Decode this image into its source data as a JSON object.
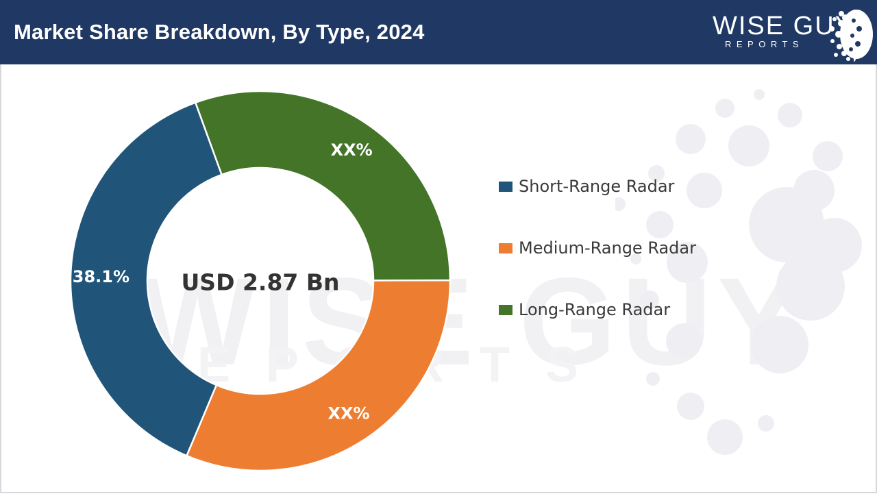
{
  "header": {
    "title": "Market Share Breakdown, By Type, 2024",
    "bg_color": "#203864",
    "logo": {
      "line1": "WISE GUY",
      "line2": "REPORTS"
    }
  },
  "watermark": {
    "line1": "WISE GUY",
    "line2": "REPORTS"
  },
  "chart_data": {
    "type": "pie",
    "subtype": "donut",
    "title": "Market Share Breakdown, By Type, 2024",
    "center_label": "USD 2.87 Bn",
    "start_angle_deg": 110,
    "direction": "counterclockwise",
    "legend_position": "right",
    "slice_label_color": "#ffffff",
    "segments": [
      {
        "name": "Short-Range Radar",
        "color": "#205579",
        "share_pct": 38.1,
        "label": "38.1%"
      },
      {
        "name": "Medium-Range Radar",
        "color": "#ed7d31",
        "share_pct": 31.4,
        "label": "XX%"
      },
      {
        "name": "Long-Range Radar",
        "color": "#437428",
        "share_pct": 30.5,
        "label": "XX%"
      }
    ]
  }
}
